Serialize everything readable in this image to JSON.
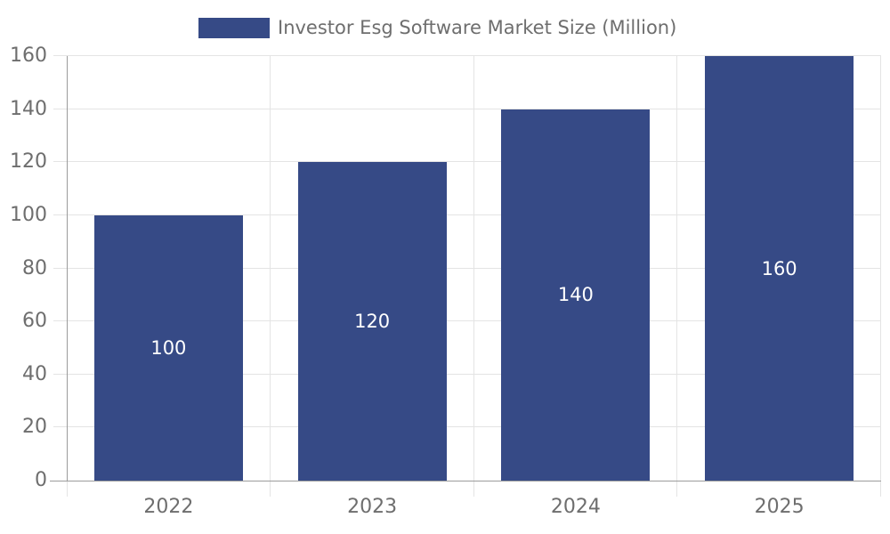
{
  "chart_data": {
    "type": "bar",
    "title": "Investor Esg Software Market Size (Million)",
    "categories": [
      "2022",
      "2023",
      "2024",
      "2025"
    ],
    "values": [
      100,
      120,
      140,
      160
    ],
    "value_labels": [
      "100",
      "120",
      "140",
      "160"
    ],
    "xlabel": "",
    "ylabel": "",
    "ylim": [
      0,
      160
    ],
    "yticks": [
      0,
      20,
      40,
      60,
      80,
      100,
      120,
      140,
      160
    ],
    "grid": true,
    "legend_position": "top-center",
    "colors": {
      "bar": "#364A86",
      "value_label": "#FFFFFF",
      "grid": "#E4E4E4",
      "axis": "#9B9B9B",
      "text": "#6E6E6E",
      "background": "#FFFFFF"
    }
  }
}
